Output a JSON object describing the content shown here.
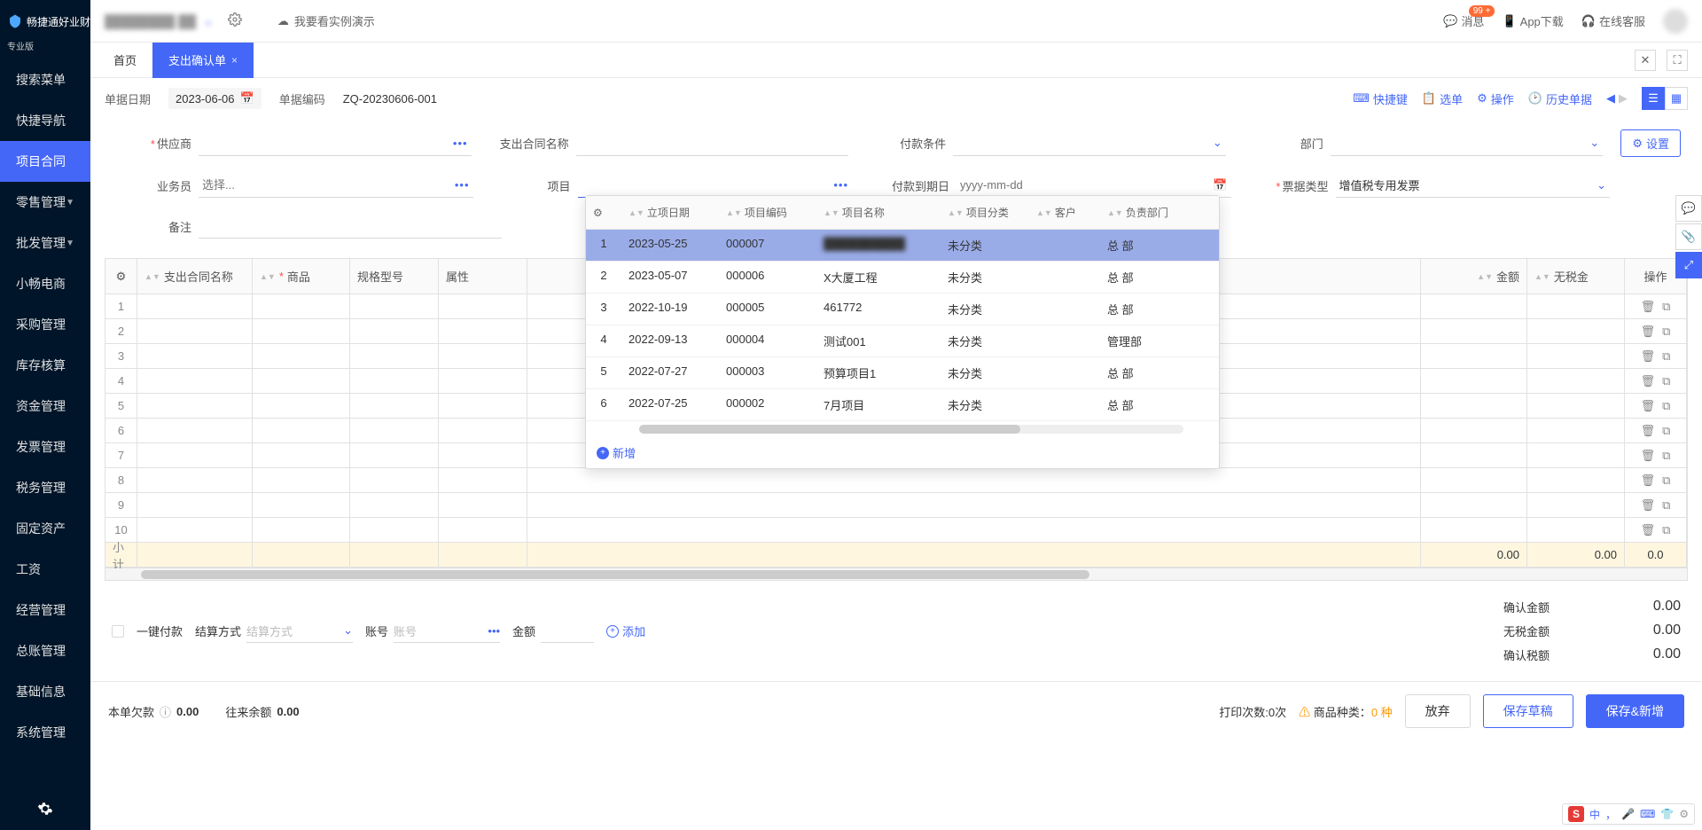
{
  "logo": {
    "brand": "畅捷通好业财",
    "edition": "专业版"
  },
  "topbar": {
    "company": "████████ ██",
    "demo": "我要看实例演示",
    "msg": "消息",
    "msg_badge": "99 +",
    "app": "App下载",
    "svc": "在线客服"
  },
  "sidebar": {
    "items": [
      {
        "label": "搜索菜单",
        "expand": false
      },
      {
        "label": "快捷导航",
        "expand": false
      },
      {
        "label": "项目合同",
        "expand": false,
        "active": true
      },
      {
        "label": "零售管理",
        "expand": true
      },
      {
        "label": "批发管理",
        "expand": true
      },
      {
        "label": "小畅电商",
        "expand": false
      },
      {
        "label": "采购管理",
        "expand": false
      },
      {
        "label": "库存核算",
        "expand": false
      },
      {
        "label": "资金管理",
        "expand": false
      },
      {
        "label": "发票管理",
        "expand": false
      },
      {
        "label": "税务管理",
        "expand": false
      },
      {
        "label": "固定资产",
        "expand": false
      },
      {
        "label": "工资",
        "expand": false
      },
      {
        "label": "经营管理",
        "expand": false
      },
      {
        "label": "总账管理",
        "expand": false
      },
      {
        "label": "基础信息",
        "expand": false
      },
      {
        "label": "系统管理",
        "expand": false
      }
    ]
  },
  "tabs": {
    "home": "首页",
    "active": "支出确认单"
  },
  "doc": {
    "date_label": "单据日期",
    "date": "2023-06-06",
    "code_label": "单据编码",
    "code": "ZQ-20230606-001",
    "right": {
      "shortcut": "快捷键",
      "form": "选单",
      "ops": "操作",
      "history": "历史单据"
    },
    "settings": "设置"
  },
  "form": {
    "supplier": "供应商",
    "contract_name": "支出合同名称",
    "pay_terms": "付款条件",
    "dept": "部门",
    "salesman": "业务员",
    "salesman_ph": "选择...",
    "project": "项目",
    "project_ph": "",
    "due_date": "付款到期日",
    "due_ph": "yyyy-mm-dd",
    "invoice_type": "票据类型",
    "invoice_val": "增值税专用发票",
    "remark": "备注"
  },
  "dropdown": {
    "cols": {
      "c1": "立项日期",
      "c2": "项目编码",
      "c3": "项目名称",
      "c4": "项目分类",
      "c5": "客户",
      "c6": "负责部门"
    },
    "rows": [
      {
        "idx": "1",
        "c1": "2023-05-25",
        "c2": "000007",
        "c3": "██████████",
        "c4": "未分类",
        "c5": "",
        "c6": "总 部",
        "sel": true,
        "blur": true
      },
      {
        "idx": "2",
        "c1": "2023-05-07",
        "c2": "000006",
        "c3": "X大厦工程",
        "c4": "未分类",
        "c5": "",
        "c6": "总 部"
      },
      {
        "idx": "3",
        "c1": "2022-10-19",
        "c2": "000005",
        "c3": "461772",
        "c4": "未分类",
        "c5": "",
        "c6": "总 部"
      },
      {
        "idx": "4",
        "c1": "2022-09-13",
        "c2": "000004",
        "c3": "测试001",
        "c4": "未分类",
        "c5": "",
        "c6": "管理部"
      },
      {
        "idx": "5",
        "c1": "2022-07-27",
        "c2": "000003",
        "c3": "预算项目1",
        "c4": "未分类",
        "c5": "",
        "c6": "总 部"
      },
      {
        "idx": "6",
        "c1": "2022-07-25",
        "c2": "000002",
        "c3": "7月项目",
        "c4": "未分类",
        "c5": "",
        "c6": "总 部"
      }
    ],
    "add": "新增"
  },
  "grid": {
    "cols": {
      "name": "支出合同名称",
      "prod": "商品",
      "spec": "规格型号",
      "attr": "属性",
      "amt": "金额",
      "notax": "无税金",
      "ops": "操作"
    },
    "rownums": [
      "1",
      "2",
      "3",
      "4",
      "5",
      "6",
      "7",
      "8",
      "9",
      "10"
    ],
    "subtotal": "小计",
    "sum_amt": "0.00",
    "sum_notax": "0.00",
    "sum_last": "0.0"
  },
  "payrow": {
    "onekey": "一键付款",
    "method": "结算方式",
    "method_ph": "结算方式",
    "acct": "账号",
    "acct_ph": "账号",
    "amount": "金额",
    "add": "添加"
  },
  "totals": {
    "confirm": "确认金额",
    "confirm_v": "0.00",
    "notax": "无税金额",
    "notax_v": "0.00",
    "tax": "确认税额",
    "tax_v": "0.00"
  },
  "footer": {
    "owe": "本单欠款",
    "owe_v": "0.00",
    "bal": "往来余额",
    "bal_v": "0.00",
    "print": "打印次数:",
    "print_v": "0次",
    "kinds": "商品种类：",
    "kinds_v": "0 种",
    "discard": "放弃",
    "draft": "保存草稿",
    "save": "保存&新增"
  },
  "ime": {
    "s": "S",
    "zh": "中"
  }
}
